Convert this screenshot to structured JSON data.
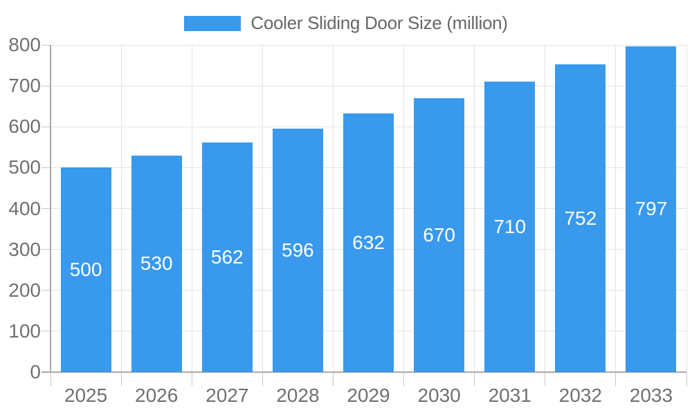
{
  "chart_data": {
    "type": "bar",
    "title": "Cooler Sliding Door Size (million)",
    "categories": [
      "2025",
      "2026",
      "2027",
      "2028",
      "2029",
      "2030",
      "2031",
      "2032",
      "2033"
    ],
    "values": [
      500,
      530,
      562,
      596,
      632,
      670,
      710,
      752,
      797
    ],
    "series": [
      {
        "name": "Cooler Sliding Door Size (million)",
        "values": [
          500,
          530,
          562,
          596,
          632,
          670,
          710,
          752,
          797
        ]
      }
    ],
    "xlabel": "",
    "ylabel": "",
    "ylim": [
      0,
      800
    ],
    "yticks": [
      0,
      100,
      200,
      300,
      400,
      500,
      600,
      700,
      800
    ],
    "grid": true,
    "bar_labels": "inside-center",
    "legend_position": "top-center"
  },
  "colors": {
    "bar": "#3999ED",
    "grid": "#e3e3e3",
    "axis": "#a8a8a8",
    "tick": "#c6c6c6",
    "axis_label": "#707070",
    "legend_text": "#666666",
    "bar_label": "#ffffff",
    "background": "#ffffff"
  }
}
